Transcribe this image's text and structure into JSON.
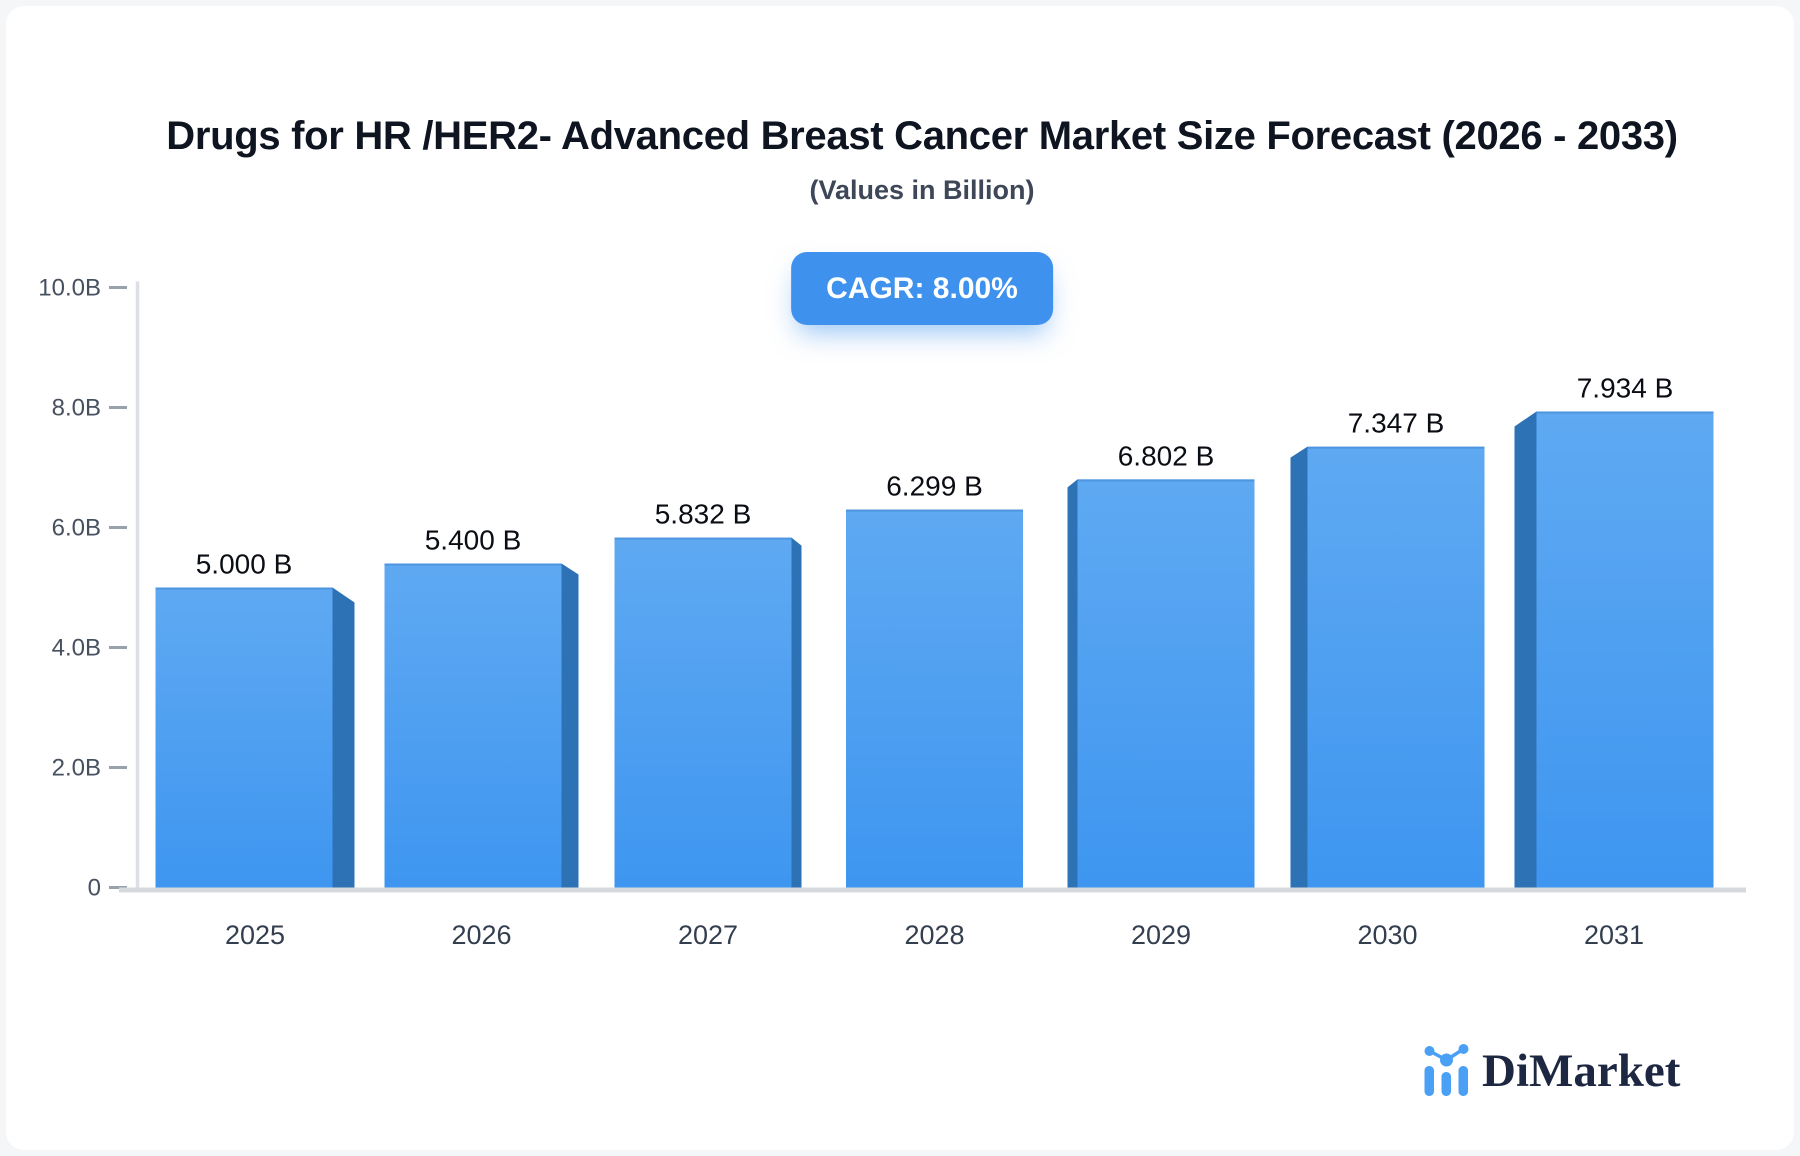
{
  "header": {
    "title": "Drugs for HR /HER2- Advanced Breast Cancer Market Size Forecast (2026 - 2033)",
    "subtitle": "(Values in Billion)"
  },
  "badge": {
    "label": "CAGR: 8.00%"
  },
  "branding": {
    "name": "DiMarket",
    "icon": "mini-bar-chart-logo-icon"
  },
  "colors": {
    "badge_blue": "#3e92ee",
    "bar_face_top": "#5fa9f2",
    "bar_face_bottom": "#3e96f0",
    "bar_bevel": "#2e72b6",
    "bar_top_edge": "#4a90d9",
    "axis_line": "#d6dade",
    "tick_dash": "#99a1ad",
    "y_label": "#46505f",
    "x_label": "#333e4e",
    "value_label": "#0a0e14",
    "title_color": "#0e1420",
    "subtitle_color": "#3d4757",
    "logo_navy": "#1d2741",
    "logo_blue": "#4aa0f5"
  },
  "chart_data": {
    "type": "bar",
    "title": "Drugs for HR /HER2- Advanced Breast Cancer Market Size Forecast (2026 - 2033)",
    "subtitle": "(Values in Billion)",
    "xlabel": "",
    "ylabel": "",
    "categories": [
      "2025",
      "2026",
      "2027",
      "2028",
      "2029",
      "2030",
      "2031"
    ],
    "values": [
      5.0,
      5.4,
      5.832,
      6.299,
      6.802,
      7.347,
      7.934
    ],
    "value_labels": [
      "5.000 B",
      "5.400 B",
      "5.832 B",
      "6.299 B",
      "6.802 B",
      "7.347 B",
      "7.934 B"
    ],
    "y_ticks": [
      {
        "value": 10,
        "label": "10.0B"
      },
      {
        "value": 8,
        "label": "8.0B"
      },
      {
        "value": 6,
        "label": "6.0B"
      },
      {
        "value": 4,
        "label": "4.0B"
      },
      {
        "value": 2,
        "label": "2.0B"
      },
      {
        "value": 0,
        "label": "0"
      }
    ],
    "ylim": [
      0,
      10
    ],
    "grid": false,
    "legend": false,
    "style": "3d-beveled-bars",
    "annotation": "CAGR: 8.00%"
  }
}
